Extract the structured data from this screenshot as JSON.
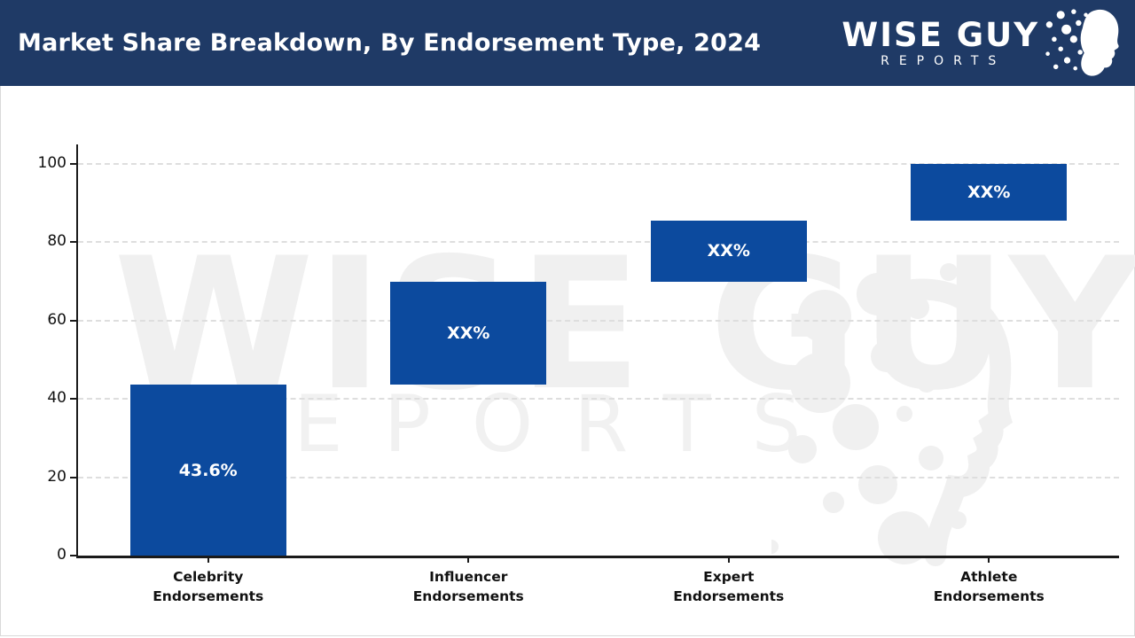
{
  "header": {
    "title": "Market Share Breakdown, By Endorsement Type, 2024",
    "logo": {
      "line1": "WISE GUY",
      "line2": "REPORTS"
    }
  },
  "watermark": {
    "line1": "WISE GUY",
    "line2": "REPORTS"
  },
  "chart_data": {
    "type": "bar",
    "subtype": "waterfall",
    "title": "Market Share Breakdown, By Endorsement Type, 2024",
    "categories": [
      "Celebrity Endorsements",
      "Influencer Endorsements",
      "Expert Endorsements",
      "Athlete Endorsements"
    ],
    "segments": [
      {
        "start": 0,
        "end": 43.6,
        "label": "43.6%"
      },
      {
        "start": 43.6,
        "end": 70,
        "label": "XX%"
      },
      {
        "start": 70,
        "end": 85.5,
        "label": "XX%"
      },
      {
        "start": 85.5,
        "end": 100,
        "label": "XX%"
      }
    ],
    "yticks": [
      0,
      20,
      40,
      60,
      80,
      100
    ],
    "ylim": [
      0,
      105
    ],
    "xlabel": "",
    "ylabel": "",
    "grid": "horizontal-dashed",
    "legend": "none",
    "bar_color": "#0c4a9e",
    "bar_label_color": "#ffffff"
  },
  "colors": {
    "header_bg": "#1f3a66",
    "bar": "#0c4a9e",
    "grid": "#dedede",
    "axis": "#1a1a1a",
    "watermark": "#f0f0f0",
    "frame_border": "#d9d9d9"
  }
}
